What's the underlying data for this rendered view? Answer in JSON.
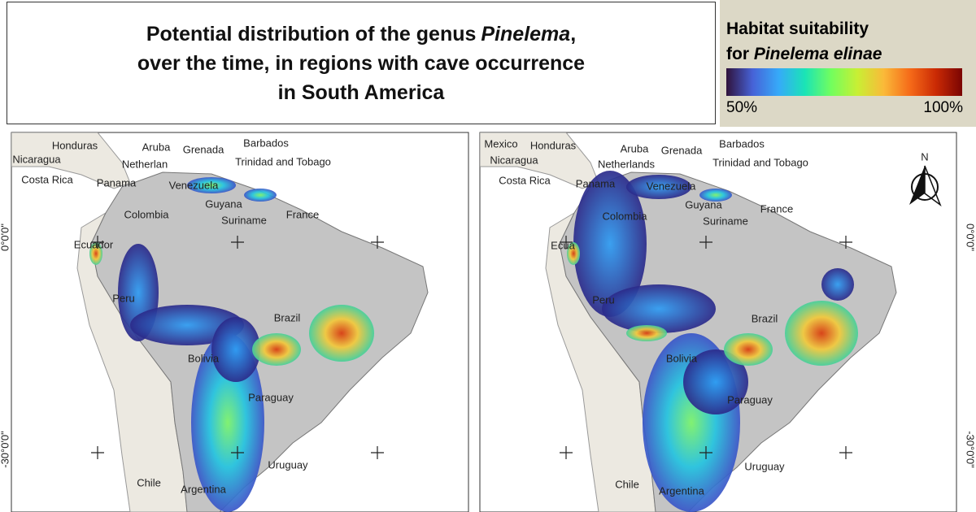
{
  "header": {
    "title_prefix": "Potential distribution of the genus",
    "title_genus": "Pinelema",
    "title_comma": ",",
    "title_line2": "over the time, in regions with cave occurrence",
    "title_line3": "in South America"
  },
  "legend": {
    "title_line1": "Habitat suitability",
    "title_for": "for",
    "species": "Pinelema elinae",
    "min_label": "50%",
    "max_label": "100%"
  },
  "north_arrow": "N",
  "coordinates": {
    "lat_0": "0°0'0\"",
    "lat_30": "-30°0'0\""
  },
  "maps": [
    {
      "labels": [
        "Honduras",
        "Nicaragua",
        "Costa Rica",
        "Aruba",
        "Netherlan",
        "Grenada",
        "Barbados",
        "Trinidad and Tobago",
        "Panama",
        "Venezuela",
        "Colombia",
        "Guyana",
        "Suriname",
        "France",
        "Ecuador",
        "Peru",
        "Brazil",
        "Bolivia",
        "Paraguay",
        "Uruguay",
        "Chile",
        "Argentina"
      ]
    },
    {
      "labels": [
        "Mexico",
        "Honduras",
        "Nicaragua",
        "Costa Rica",
        "Aruba",
        "Netherlands",
        "Grenada",
        "Barbados",
        "Trinidad and Tobago",
        "Panama",
        "Venezuela",
        "Colombia",
        "Guyana",
        "Suriname",
        "France",
        "Ecua",
        "Peru",
        "Brazil",
        "Bolivia",
        "Paraguay",
        "Uruguay",
        "Chile",
        "Argentina"
      ]
    }
  ]
}
